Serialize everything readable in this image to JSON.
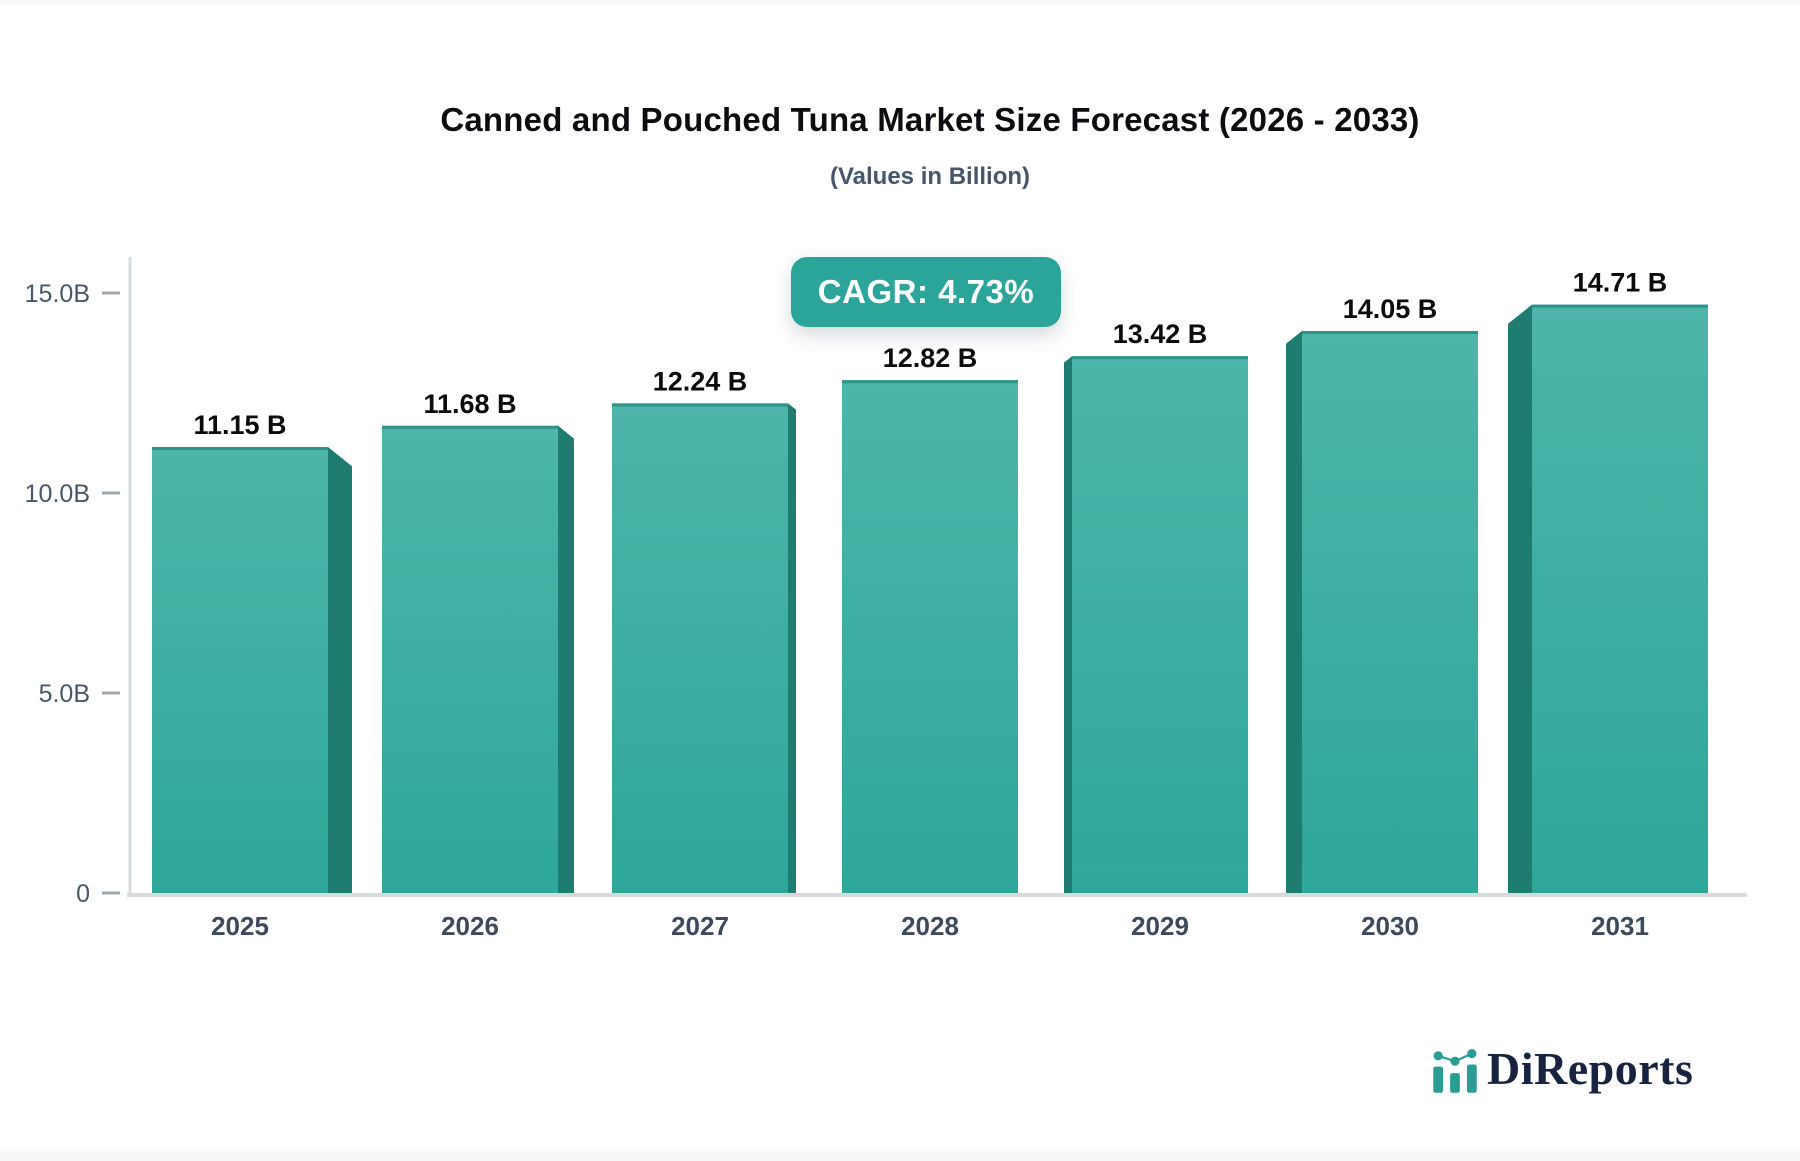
{
  "chart_data": {
    "type": "bar",
    "style": "3d-perspective-center",
    "title": "Canned and Pouched Tuna Market Size Forecast (2026 - 2033)",
    "subtitle": "(Values in Billion)",
    "cagr_label": "CAGR: 4.73%",
    "categories": [
      "2025",
      "2026",
      "2027",
      "2028",
      "2029",
      "2030",
      "2031"
    ],
    "values": [
      11.15,
      11.68,
      12.24,
      12.82,
      13.42,
      14.05,
      14.71
    ],
    "value_labels": [
      "11.15 B",
      "11.68 B",
      "12.24 B",
      "12.82 B",
      "13.42 B",
      "14.05 B",
      "14.71 B"
    ],
    "xlabel": "",
    "ylabel": "",
    "ylim": [
      0,
      15
    ],
    "yticks": [
      {
        "value": 15,
        "label": "15.0B"
      },
      {
        "value": 10,
        "label": "10.0B"
      },
      {
        "value": 5,
        "label": "5.0B"
      },
      {
        "value": 0,
        "label": "0"
      }
    ],
    "grid": false,
    "legend": false,
    "colors": {
      "bar_face_top": "#4eb5aa",
      "bar_face_bottom": "#2ea79a",
      "bar_side": "#1e7c71",
      "bar_top_edge": "#2e948a",
      "axis_line": "#d6dadd",
      "tick_mark": "#a0a8b0",
      "y_label": "#4a5766",
      "x_label": "#3c4a5c",
      "value_label": "#0c0c0c",
      "badge_bg": "#2ba59a",
      "badge_text": "#ffffff"
    }
  },
  "logo": {
    "text": "DiReports",
    "icon": "bar-chart-icon",
    "icon_color": "#2b9e94",
    "text_color": "#17233f"
  }
}
